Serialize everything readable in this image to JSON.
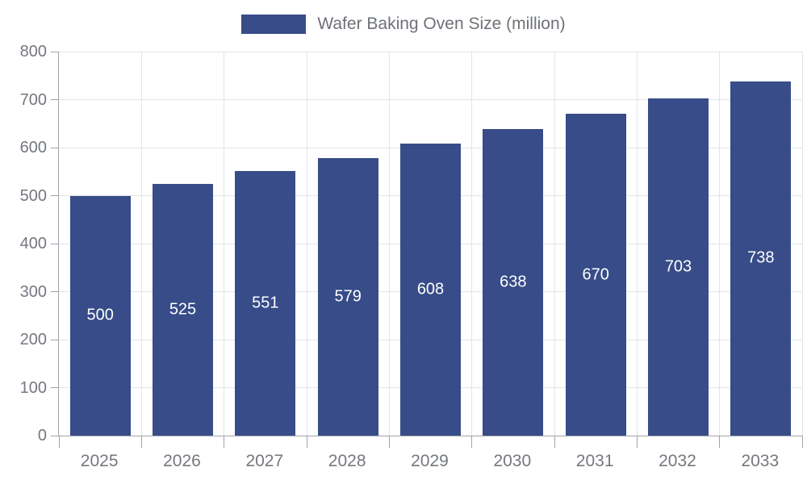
{
  "chart_data": {
    "type": "bar",
    "title": "",
    "legend": "Wafer Baking Oven Size (million)",
    "legend_position": "top-center",
    "categories": [
      "2025",
      "2026",
      "2027",
      "2028",
      "2029",
      "2030",
      "2031",
      "2032",
      "2033"
    ],
    "series": [
      {
        "name": "Wafer Baking Oven Size (million)",
        "values": [
          500,
          525,
          551,
          579,
          608,
          638,
          670,
          703,
          738
        ]
      }
    ],
    "xlabel": "",
    "ylabel": "",
    "ylim": [
      0,
      800
    ],
    "ytick_step": 100,
    "yticks": [
      0,
      100,
      200,
      300,
      400,
      500,
      600,
      700,
      800
    ],
    "grid": true,
    "bar_labels_inside": true,
    "colors": {
      "bar": "#374C88",
      "bar_label": "#ffffff",
      "axis_line": "#a0a3ab",
      "grid_line": "#e2e4ea",
      "tick_text": "#74787e",
      "legend_text": "#6d7177",
      "background": "#ffffff"
    }
  }
}
